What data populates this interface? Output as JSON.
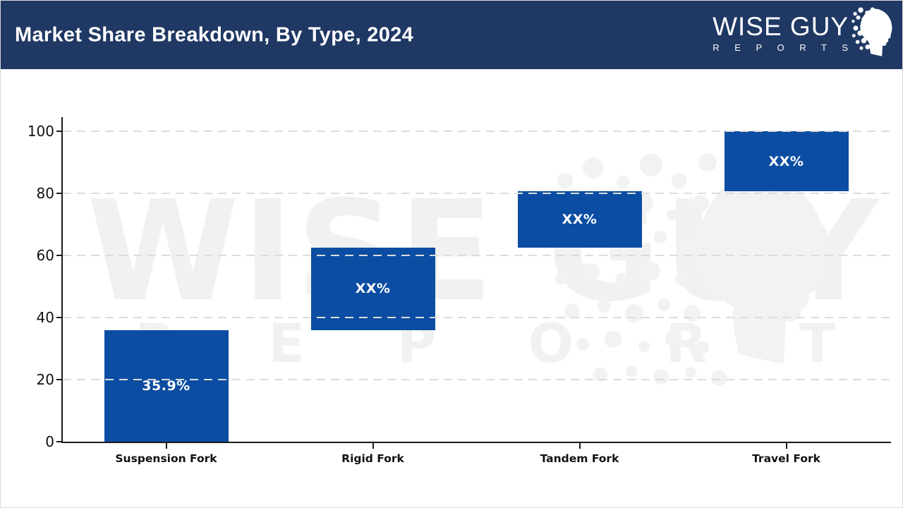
{
  "header": {
    "title": "Market Share Breakdown, By Type, 2024",
    "logo": {
      "primary": "WISE GUY",
      "secondary": "R E P O R T S"
    },
    "bg_color": "#1f3864",
    "text_color": "#ffffff"
  },
  "watermark": {
    "primary": "WISE GUY",
    "secondary": "R E P O R T S",
    "color": "#f1f1f1"
  },
  "chart_data": {
    "type": "bar",
    "subtype": "waterfall",
    "title": "Market Share Breakdown, By Type, 2024",
    "categories": [
      "Suspension Fork",
      "Rigid Fork",
      "Tandem Fork",
      "Travel Fork"
    ],
    "series": [
      {
        "name": "Market share (%)",
        "segments": [
          {
            "category": "Suspension Fork",
            "start": 0,
            "end": 35.9,
            "label": "35.9%"
          },
          {
            "category": "Rigid Fork",
            "start": 35.9,
            "end": 62.6,
            "label": "XX%"
          },
          {
            "category": "Tandem Fork",
            "start": 62.6,
            "end": 80.6,
            "label": "XX%"
          },
          {
            "category": "Travel Fork",
            "start": 80.6,
            "end": 100,
            "label": "XX%"
          }
        ]
      }
    ],
    "xlabel": "",
    "ylabel": "",
    "ylim": [
      0,
      100
    ],
    "yticks": [
      0,
      20,
      40,
      60,
      80,
      100
    ],
    "grid": {
      "axis": "y",
      "style": "dashed",
      "color": "#dcdcdc",
      "above_bars": true
    },
    "bar_color": "#0b4da2",
    "bar_label_color": "#ffffff",
    "legend": "none"
  }
}
